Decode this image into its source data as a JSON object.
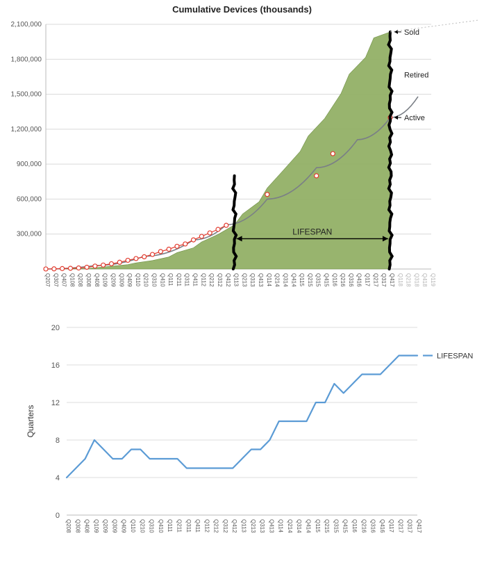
{
  "top_chart": {
    "type": "area+line+scatter",
    "title": "Cumulative Devices (thousands)",
    "title_fontsize": 13,
    "background_color": "#ffffff",
    "grid_color": "#d9d9d9",
    "axis_color": "#bbbbbb",
    "ylim": [
      0,
      2100000
    ],
    "ytick_step": 300000,
    "yticks": [
      "300,000",
      "600,000",
      "900,000",
      "1,200,000",
      "1,500,000",
      "1,800,000",
      "2,100,000"
    ],
    "x_categories": [
      "Q207",
      "Q307",
      "Q407",
      "Q108",
      "Q208",
      "Q308",
      "Q408",
      "Q109",
      "Q209",
      "Q309",
      "Q409",
      "Q110",
      "Q210",
      "Q310",
      "Q410",
      "Q111",
      "Q211",
      "Q311",
      "Q411",
      "Q112",
      "Q212",
      "Q312",
      "Q412",
      "Q113",
      "Q213",
      "Q313",
      "Q413",
      "Q114",
      "Q214",
      "Q314",
      "Q414",
      "Q115",
      "Q215",
      "Q315",
      "Q415",
      "Q116",
      "Q216",
      "Q316",
      "Q416",
      "Q117",
      "Q217",
      "Q317",
      "Q417",
      "Q118",
      "Q218",
      "Q318",
      "Q418",
      "Q119"
    ],
    "sold_area": {
      "color_fill": "#8fae62",
      "color_stroke": "#6e8f44",
      "values": [
        270,
        1389,
        3744,
        6047,
        10916,
        24409,
        37865,
        52494,
        72964,
        103277,
        140958,
        181756,
        232731,
        296431,
        378994,
        472789,
        576404,
        694242,
        849263,
        1007813,
        1141109,
        1291268,
        1506495,
        1671371,
        1817073,
        1983471,
        2034932
      ]
    },
    "active_curve": {
      "color": "#7a7f86",
      "line_width": 1.6,
      "end_value": 1300000
    },
    "scatter_points": {
      "marker": "circle",
      "marker_fill": "#ffffff",
      "marker_stroke": "#e23b2e",
      "marker_size": 3,
      "values": [
        {
          "x": "Q207",
          "y": 270
        },
        {
          "x": "Q307",
          "y": 1389
        },
        {
          "x": "Q407",
          "y": 3744
        },
        {
          "x": "Q108",
          "y": 6047
        },
        {
          "x": "Q208",
          "y": 9000
        },
        {
          "x": "Q308",
          "y": 15000
        },
        {
          "x": "Q408",
          "y": 25000
        },
        {
          "x": "Q109",
          "y": 34000
        },
        {
          "x": "Q209",
          "y": 45000
        },
        {
          "x": "Q309",
          "y": 58000
        },
        {
          "x": "Q409",
          "y": 75000
        },
        {
          "x": "Q110",
          "y": 90000
        },
        {
          "x": "Q210",
          "y": 105000
        },
        {
          "x": "Q310",
          "y": 125000
        },
        {
          "x": "Q410",
          "y": 150000
        },
        {
          "x": "Q111",
          "y": 170000
        },
        {
          "x": "Q211",
          "y": 195000
        },
        {
          "x": "Q311",
          "y": 215000
        },
        {
          "x": "Q411",
          "y": 250000
        },
        {
          "x": "Q112",
          "y": 280000
        },
        {
          "x": "Q212",
          "y": 310000
        },
        {
          "x": "Q312",
          "y": 340000
        },
        {
          "x": "Q412",
          "y": 375000
        },
        {
          "x": "Q114",
          "y": 640000
        },
        {
          "x": "Q315",
          "y": 800000
        },
        {
          "x": "Q116",
          "y": 990000
        },
        {
          "x": "Q417",
          "y": 1300000
        }
      ]
    },
    "lifespan_band": {
      "left_x": "Q113",
      "right_x": "Q417",
      "bar_color": "#000000",
      "label": "LIFESPAN"
    },
    "labels": {
      "sold": "Sold",
      "retired": "Retired",
      "active": "Active"
    }
  },
  "bottom_chart": {
    "type": "line",
    "background_color": "#ffffff",
    "grid_color": "#dedede",
    "axis_color": "#bbbbbb",
    "ylabel": "Quarters",
    "ylabel_fontsize": 12,
    "ylim": [
      0,
      20
    ],
    "ytick_step": 4,
    "yticks": [
      "0",
      "4",
      "8",
      "12",
      "16",
      "20"
    ],
    "x_categories": [
      "Q208",
      "Q308",
      "Q408",
      "Q109",
      "Q209",
      "Q309",
      "Q409",
      "Q110",
      "Q210",
      "Q310",
      "Q410",
      "Q111",
      "Q211",
      "Q311",
      "Q411",
      "Q112",
      "Q212",
      "Q312",
      "Q412",
      "Q113",
      "Q213",
      "Q313",
      "Q413",
      "Q114",
      "Q214",
      "Q314",
      "Q414",
      "Q115",
      "Q215",
      "Q315",
      "Q415",
      "Q116",
      "Q216",
      "Q316",
      "Q416",
      "Q117",
      "Q217",
      "Q317",
      "Q417"
    ],
    "series": {
      "label": "LIFESPAN",
      "color": "#5b9bd5",
      "line_width": 2.2,
      "values": [
        4,
        5,
        6,
        8,
        7,
        6,
        6,
        7,
        7,
        6,
        6,
        6,
        6,
        5,
        5,
        5,
        5,
        5,
        5,
        6,
        7,
        7,
        8,
        10,
        10,
        10,
        10,
        12,
        12,
        14,
        13,
        14,
        15,
        15,
        15,
        16,
        17,
        17,
        17
      ]
    }
  }
}
